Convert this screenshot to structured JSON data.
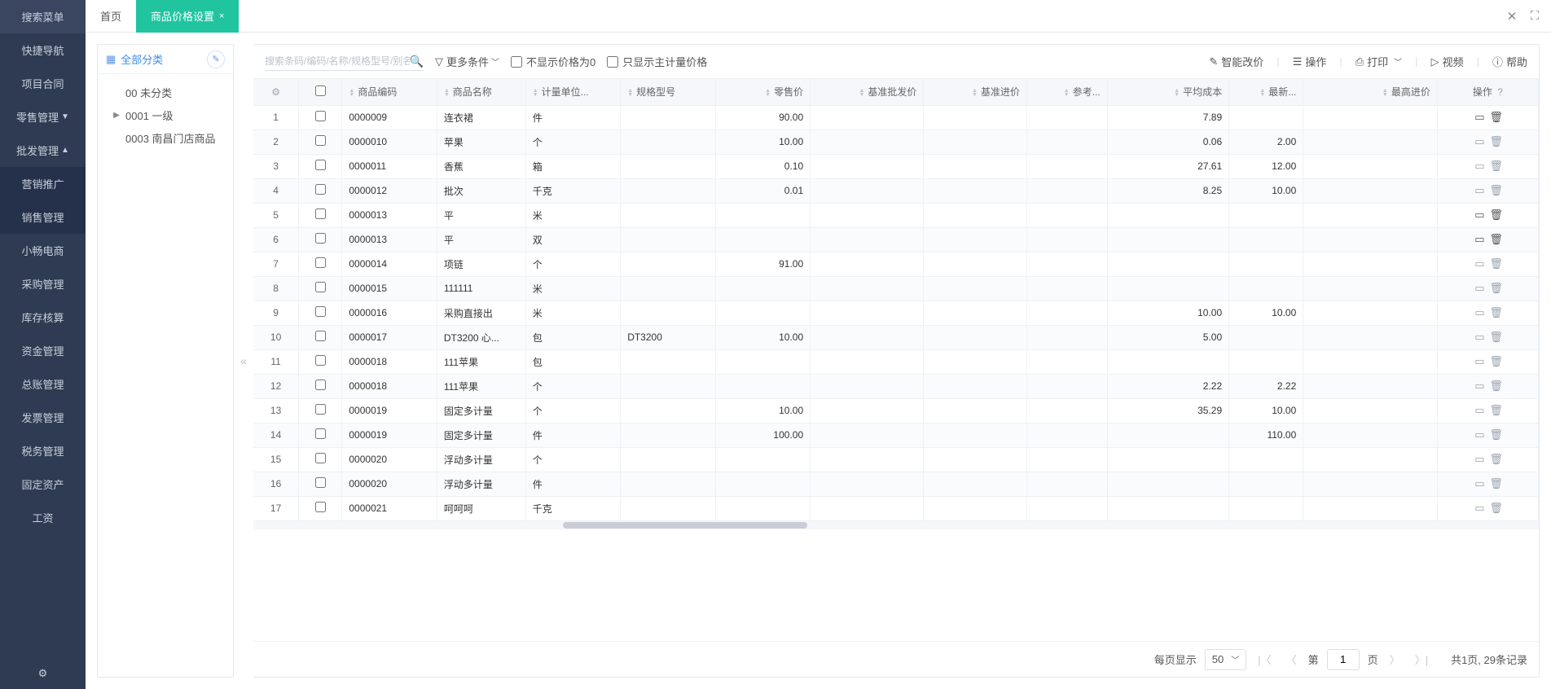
{
  "sidebar": {
    "items": [
      {
        "label": "搜索菜单",
        "expand": ""
      },
      {
        "label": "快捷导航",
        "expand": ""
      },
      {
        "label": "项目合同",
        "expand": ""
      },
      {
        "label": "零售管理",
        "expand": "▼"
      },
      {
        "label": "批发管理",
        "expand": "▲"
      },
      {
        "label": "营销推广",
        "expand": "",
        "sub": true
      },
      {
        "label": "销售管理",
        "expand": "",
        "sub": true
      },
      {
        "label": "小畅电商",
        "expand": ""
      },
      {
        "label": "采购管理",
        "expand": ""
      },
      {
        "label": "库存核算",
        "expand": ""
      },
      {
        "label": "资金管理",
        "expand": ""
      },
      {
        "label": "总账管理",
        "expand": ""
      },
      {
        "label": "发票管理",
        "expand": ""
      },
      {
        "label": "税务管理",
        "expand": ""
      },
      {
        "label": "固定资产",
        "expand": ""
      },
      {
        "label": "工资",
        "expand": ""
      }
    ]
  },
  "tabs": {
    "home": "首页",
    "active": "商品价格设置"
  },
  "category": {
    "title": "全部分类",
    "nodes": [
      {
        "label": "00 未分类",
        "tw": ""
      },
      {
        "label": "0001 一级",
        "tw": "▶"
      },
      {
        "label": "0003 南昌门店商品",
        "tw": ""
      }
    ]
  },
  "toolbar": {
    "search_ph": "搜索条码/编码/名称/规格型号/别名",
    "more": "更多条件",
    "chk1": "不显示价格为0",
    "chk2": "只显示主计量价格",
    "smart": "智能改价",
    "ops": "操作",
    "print": "打印",
    "video": "视频",
    "help": "帮助"
  },
  "columns": [
    "商品编码",
    "商品名称",
    "计量单位...",
    "规格型号",
    "零售价",
    "基准批发价",
    "基准进价",
    "参考...",
    "平均成本",
    "最新...",
    "最高进价",
    "操作"
  ],
  "rows": [
    {
      "i": 1,
      "code": "0000009",
      "name": "连衣裙",
      "unit": "件",
      "spec": "",
      "retail": "90.00",
      "bwp": "",
      "bip": "",
      "ref": "",
      "avg": "7.89",
      "latest": "",
      "max": "",
      "op": "a"
    },
    {
      "i": 2,
      "code": "0000010",
      "name": "苹果",
      "unit": "个",
      "spec": "",
      "retail": "10.00",
      "bwp": "",
      "bip": "",
      "ref": "",
      "avg": "0.06",
      "latest": "2.00",
      "max": "",
      "op": "d"
    },
    {
      "i": 3,
      "code": "0000011",
      "name": "香蕉",
      "unit": "箱",
      "spec": "",
      "retail": "0.10",
      "bwp": "",
      "bip": "",
      "ref": "",
      "avg": "27.61",
      "latest": "12.00",
      "max": "",
      "op": "d"
    },
    {
      "i": 4,
      "code": "0000012",
      "name": "批次",
      "unit": "千克",
      "spec": "",
      "retail": "0.01",
      "bwp": "",
      "bip": "",
      "ref": "",
      "avg": "8.25",
      "latest": "10.00",
      "max": "",
      "op": "d"
    },
    {
      "i": 5,
      "code": "0000013",
      "name": "平",
      "unit": "米",
      "spec": "",
      "retail": "",
      "bwp": "",
      "bip": "",
      "ref": "",
      "avg": "",
      "latest": "",
      "max": "",
      "op": "a"
    },
    {
      "i": 6,
      "code": "0000013",
      "name": "平",
      "unit": "双",
      "spec": "",
      "retail": "",
      "bwp": "",
      "bip": "",
      "ref": "",
      "avg": "",
      "latest": "",
      "max": "",
      "op": "a"
    },
    {
      "i": 7,
      "code": "0000014",
      "name": "项链",
      "unit": "个",
      "spec": "",
      "retail": "91.00",
      "bwp": "",
      "bip": "",
      "ref": "",
      "avg": "",
      "latest": "",
      "max": "",
      "op": "d"
    },
    {
      "i": 8,
      "code": "0000015",
      "name": "111111",
      "unit": "米",
      "spec": "",
      "retail": "",
      "bwp": "",
      "bip": "",
      "ref": "",
      "avg": "",
      "latest": "",
      "max": "",
      "op": "d"
    },
    {
      "i": 9,
      "code": "0000016",
      "name": "采购直接出",
      "unit": "米",
      "spec": "",
      "retail": "",
      "bwp": "",
      "bip": "",
      "ref": "",
      "avg": "10.00",
      "latest": "10.00",
      "max": "",
      "op": "d"
    },
    {
      "i": 10,
      "code": "0000017",
      "name": "DT3200 心...",
      "unit": "包",
      "spec": "DT3200",
      "retail": "10.00",
      "bwp": "",
      "bip": "",
      "ref": "",
      "avg": "5.00",
      "latest": "",
      "max": "",
      "op": "d"
    },
    {
      "i": 11,
      "code": "0000018",
      "name": "111苹果",
      "unit": "包",
      "spec": "",
      "retail": "",
      "bwp": "",
      "bip": "",
      "ref": "",
      "avg": "",
      "latest": "",
      "max": "",
      "op": "d"
    },
    {
      "i": 12,
      "code": "0000018",
      "name": "111苹果",
      "unit": "个",
      "spec": "",
      "retail": "",
      "bwp": "",
      "bip": "",
      "ref": "",
      "avg": "2.22",
      "latest": "2.22",
      "max": "",
      "op": "d"
    },
    {
      "i": 13,
      "code": "0000019",
      "name": "固定多计量",
      "unit": "个",
      "spec": "",
      "retail": "10.00",
      "bwp": "",
      "bip": "",
      "ref": "",
      "avg": "35.29",
      "latest": "10.00",
      "max": "",
      "op": "d"
    },
    {
      "i": 14,
      "code": "0000019",
      "name": "固定多计量",
      "unit": "件",
      "spec": "",
      "retail": "100.00",
      "bwp": "",
      "bip": "",
      "ref": "",
      "avg": "",
      "latest": "110.00",
      "max": "",
      "op": "d"
    },
    {
      "i": 15,
      "code": "0000020",
      "name": "浮动多计量",
      "unit": "个",
      "spec": "",
      "retail": "",
      "bwp": "",
      "bip": "",
      "ref": "",
      "avg": "",
      "latest": "",
      "max": "",
      "op": "d"
    },
    {
      "i": 16,
      "code": "0000020",
      "name": "浮动多计量",
      "unit": "件",
      "spec": "",
      "retail": "",
      "bwp": "",
      "bip": "",
      "ref": "",
      "avg": "",
      "latest": "",
      "max": "",
      "op": "d"
    },
    {
      "i": 17,
      "code": "0000021",
      "name": "呵呵呵",
      "unit": "千克",
      "spec": "",
      "retail": "",
      "bwp": "",
      "bip": "",
      "ref": "",
      "avg": "",
      "latest": "",
      "max": "",
      "op": "d"
    }
  ],
  "pager": {
    "per": "每页显示",
    "size": "50",
    "pg_lbl1": "第",
    "pg_cur": "1",
    "pg_lbl2": "页",
    "summary": "共1页, 29条记录"
  },
  "colwidths": {
    "gear": 44,
    "chk": 42,
    "code": 92,
    "name": 86,
    "unit": 92,
    "spec": 92,
    "retail": 92,
    "bwp": 110,
    "bip": 100,
    "ref": 78,
    "avg": 118,
    "latest": 72,
    "max": 130,
    "op": 98
  }
}
